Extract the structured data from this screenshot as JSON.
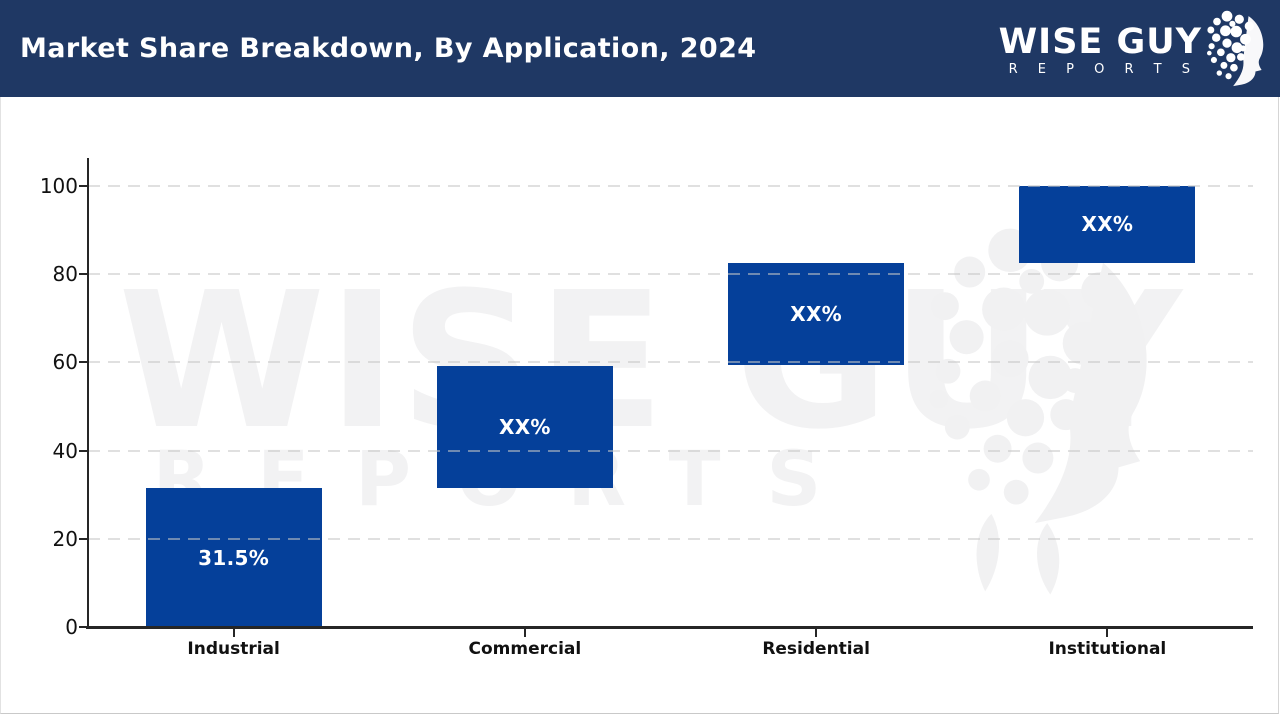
{
  "header": {
    "title": "Market Share Breakdown, By Application, 2024",
    "logo": {
      "line1": "WISE GUY",
      "line2": "REPORTS"
    }
  },
  "watermark": {
    "line1": "WISE GUY",
    "line2": "REPORTS"
  },
  "chart_data": {
    "type": "bar",
    "subtype": "waterfall",
    "title": "Market Share Breakdown, By Application, 2024",
    "categories": [
      "Industrial",
      "Commercial",
      "Residential",
      "Institutional"
    ],
    "segments": [
      {
        "category": "Industrial",
        "label": "31.5%",
        "start": 0,
        "end": 31.5
      },
      {
        "category": "Commercial",
        "label": "XX%",
        "start": 31.5,
        "end": 59.2
      },
      {
        "category": "Residential",
        "label": "XX%",
        "start": 59.4,
        "end": 82.6
      },
      {
        "category": "Institutional",
        "label": "XX%",
        "start": 82.6,
        "end": 100
      }
    ],
    "yticks": [
      0,
      20,
      40,
      60,
      80,
      100
    ],
    "ylim": [
      0,
      105
    ],
    "xlabel": "",
    "ylabel": "",
    "legend": "none",
    "grid": "horizontal-dashed-above-bars",
    "bar_color": "#05409a",
    "header_color": "#1f3864",
    "gridline_color": "#e7e7e7"
  }
}
